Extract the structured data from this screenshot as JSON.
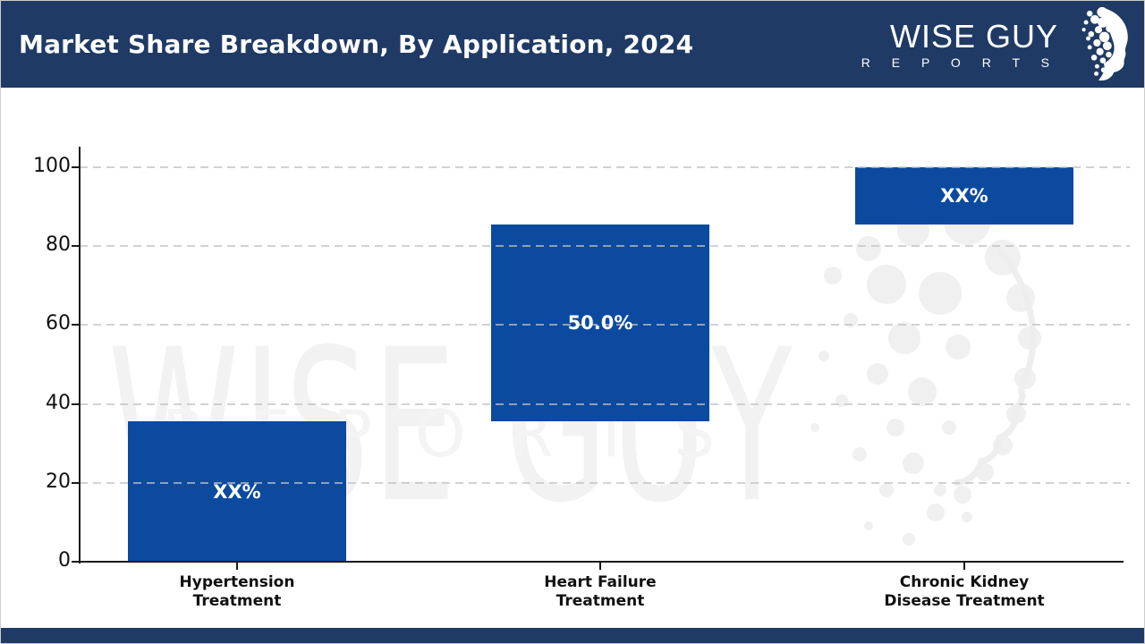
{
  "header": {
    "title": "Market Share Breakdown, By Application, 2024",
    "bg_color": "#1f3a64",
    "logo": {
      "line1": "WISE GUY",
      "line2": "R E P O R T S"
    }
  },
  "watermark": {
    "line1": "WISE GUY",
    "line2": "REPORTS"
  },
  "chart_data": {
    "type": "bar",
    "subtype": "floating-waterfall",
    "title": "Market Share Breakdown, By Application, 2024",
    "categories": [
      "Hypertension\nTreatment",
      "Heart Failure\nTreatment",
      "Chronic Kidney\nDisease Treatment"
    ],
    "bars": [
      {
        "start": 0,
        "end": 35.5,
        "label": "XX%"
      },
      {
        "start": 35.5,
        "end": 85.5,
        "label": "50.0%"
      },
      {
        "start": 85.5,
        "end": 100,
        "label": "XX%"
      }
    ],
    "yticks": [
      0,
      20,
      40,
      60,
      80,
      100
    ],
    "ylim": [
      0,
      105
    ],
    "grid": "dashed-horizontal-over-bars",
    "legend": "none",
    "bar_color": "#0b4a9f",
    "bar_label_color": "#ffffff",
    "axis_color": "#1a1a1a"
  },
  "footer": {
    "bg_color": "#1f3a64"
  }
}
